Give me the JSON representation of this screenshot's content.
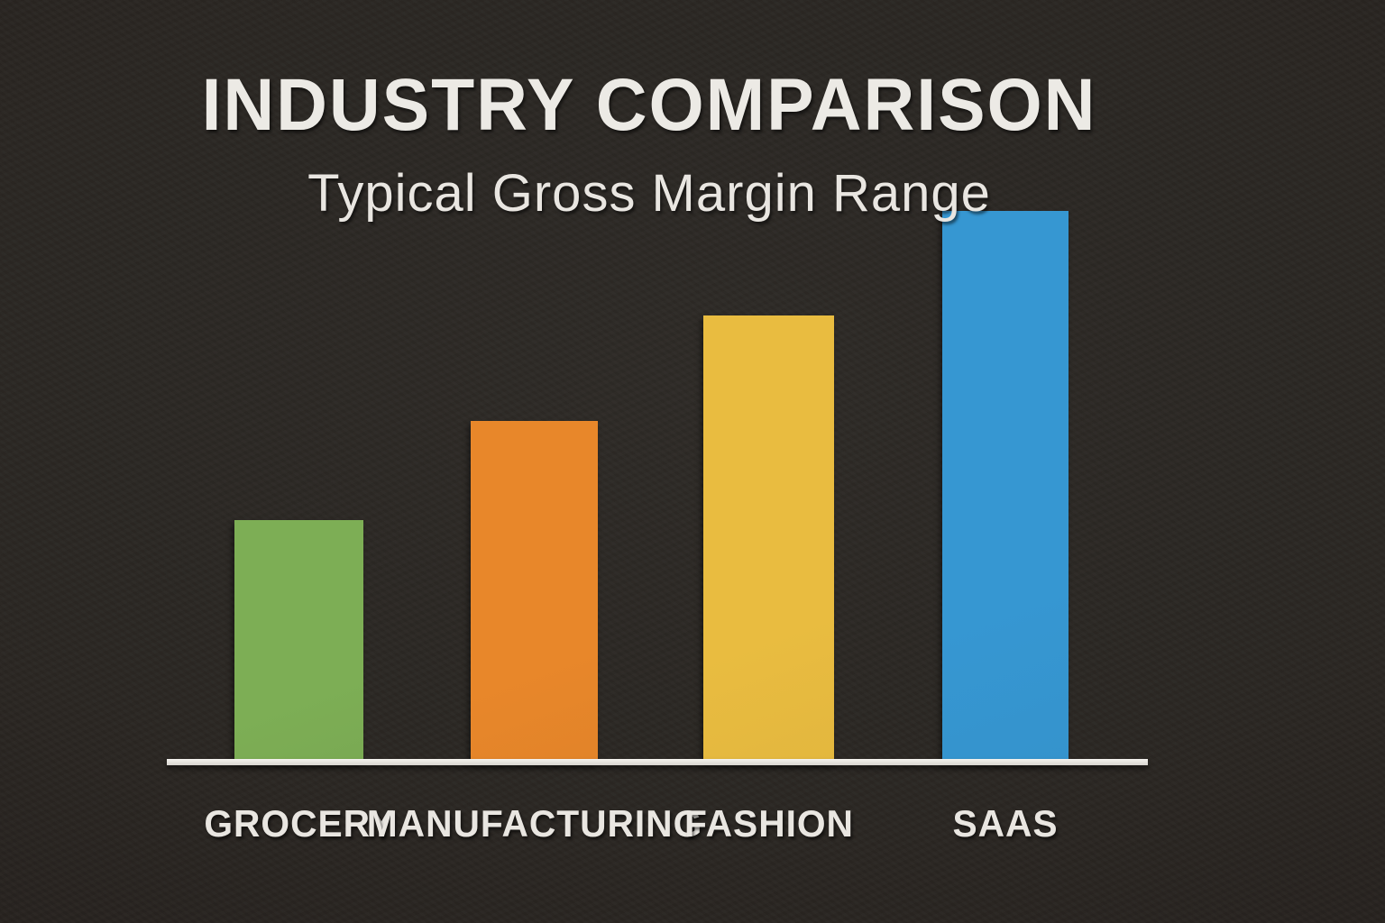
{
  "poster": {
    "title": "INDUSTRY COMPARISON",
    "subtitle": "Typical Gross Margin Range"
  },
  "colors": {
    "background": "#2a2622",
    "text": "#e9e6e1",
    "axis_line": "#e6e3dd",
    "grocery_bar": "#7dae55",
    "manufacturing_bar": "#e8872a",
    "fashion_bar": "#e9bc40",
    "saas_bar": "#3697d2"
  },
  "chart_data": {
    "type": "bar",
    "title": "INDUSTRY COMPARISON",
    "subtitle": "Typical Gross Margin Range",
    "categories": [
      "GROCERY",
      "MANUFACTURING",
      "FASHION",
      "SAAS"
    ],
    "values": [
      44,
      62,
      81,
      100
    ],
    "value_units": "relative bar height, % of tallest bar (no numeric axis or data labels shown)",
    "series_colors": [
      "#7dae55",
      "#e8872a",
      "#e9bc40",
      "#3697d2"
    ],
    "xlabel": "",
    "ylabel": "",
    "grid": false,
    "legend": false,
    "axis_ticks_shown": false,
    "baseline_axis": "single white horizontal x-axis line"
  }
}
